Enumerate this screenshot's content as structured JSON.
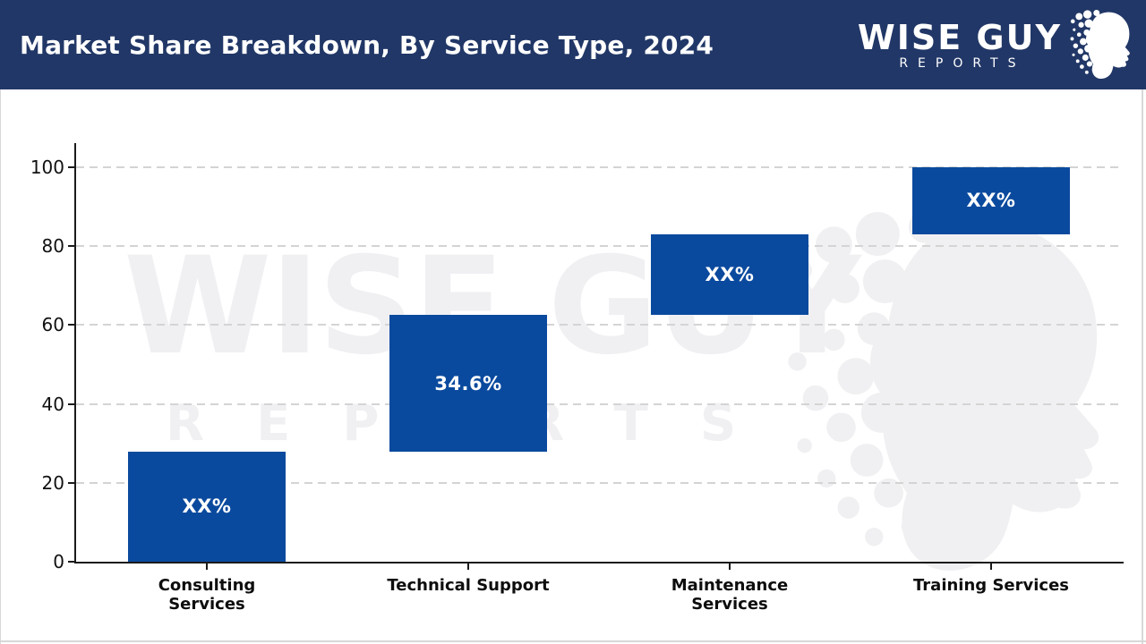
{
  "header": {
    "title": "Market Share Breakdown, By Service Type, 2024",
    "logo": {
      "line1": "WISE GUY",
      "line2": "REPORTS"
    }
  },
  "watermark": {
    "line1": "WISE GUY",
    "line2": "REPORTS"
  },
  "chart_data": {
    "type": "bar",
    "subtype": "waterfall",
    "title": "Market Share Breakdown, By Service Type, 2024",
    "categories": [
      "Consulting\nServices",
      "Technical Support",
      "Maintenance\nServices",
      "Training Services"
    ],
    "segments": [
      {
        "category": "Consulting Services",
        "start": 0,
        "end": 27.9,
        "label": "XX%"
      },
      {
        "category": "Technical Support",
        "start": 27.9,
        "end": 62.5,
        "label": "34.6%"
      },
      {
        "category": "Maintenance Services",
        "start": 62.5,
        "end": 83.0,
        "label": "XX%"
      },
      {
        "category": "Training Services",
        "start": 83.0,
        "end": 100,
        "label": "XX%"
      }
    ],
    "ylim": [
      0,
      100
    ],
    "yticks": [
      0,
      20,
      40,
      60,
      80,
      100
    ],
    "grid": "horizontal-dashed",
    "legend": "none",
    "bar_color": "#0a4a9e",
    "bar_label_color": "#ffffff",
    "axis_color": "#1a1a1a",
    "grid_color": "#d4d4d4",
    "header_bg_color": "#213767",
    "watermark_color": "#f0f0f2"
  }
}
